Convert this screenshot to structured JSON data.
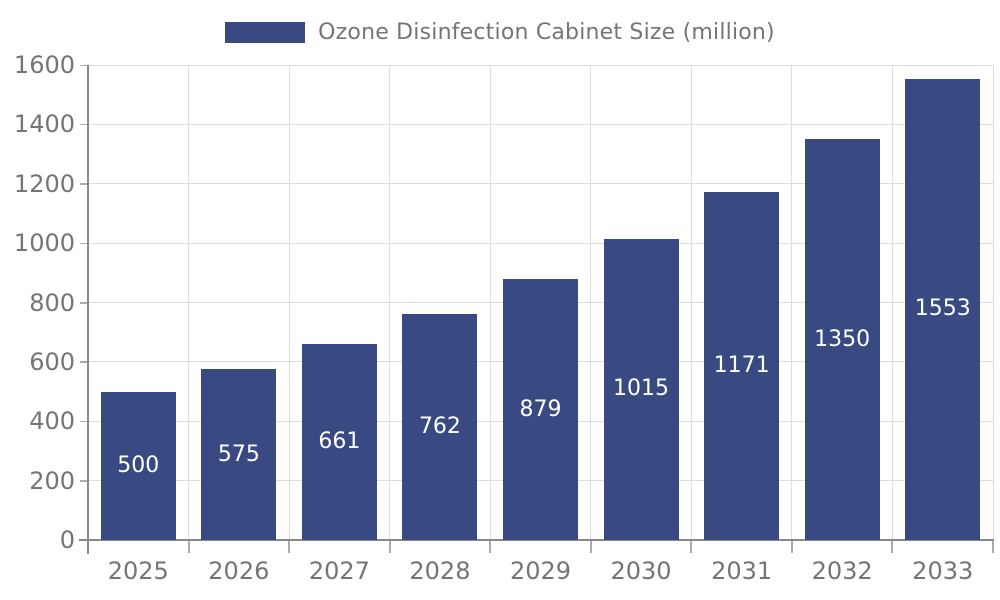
{
  "chart_data": {
    "type": "bar",
    "title": "Ozone Disinfection Cabinet Size (million)",
    "categories": [
      "2025",
      "2026",
      "2027",
      "2028",
      "2029",
      "2030",
      "2031",
      "2032",
      "2033"
    ],
    "values": [
      500,
      575,
      661,
      762,
      879,
      1015,
      1171,
      1350,
      1553
    ],
    "xlabel": "",
    "ylabel": "",
    "ylim": [
      0,
      1600
    ],
    "ytick_step": 200,
    "yticks": [
      0,
      200,
      400,
      600,
      800,
      1000,
      1200,
      1400,
      1600
    ],
    "grid": true,
    "legend_position": "top-center",
    "value_label_position": "inside-center",
    "colors": {
      "bar": "#384A81",
      "value_label": "#FFFFFF",
      "axis": "#888888",
      "grid": "#DDDDDD",
      "tick": "#AAAAAA",
      "tick_label": "#757575",
      "legend_text": "#757575",
      "background": "#FFFFFF"
    }
  }
}
